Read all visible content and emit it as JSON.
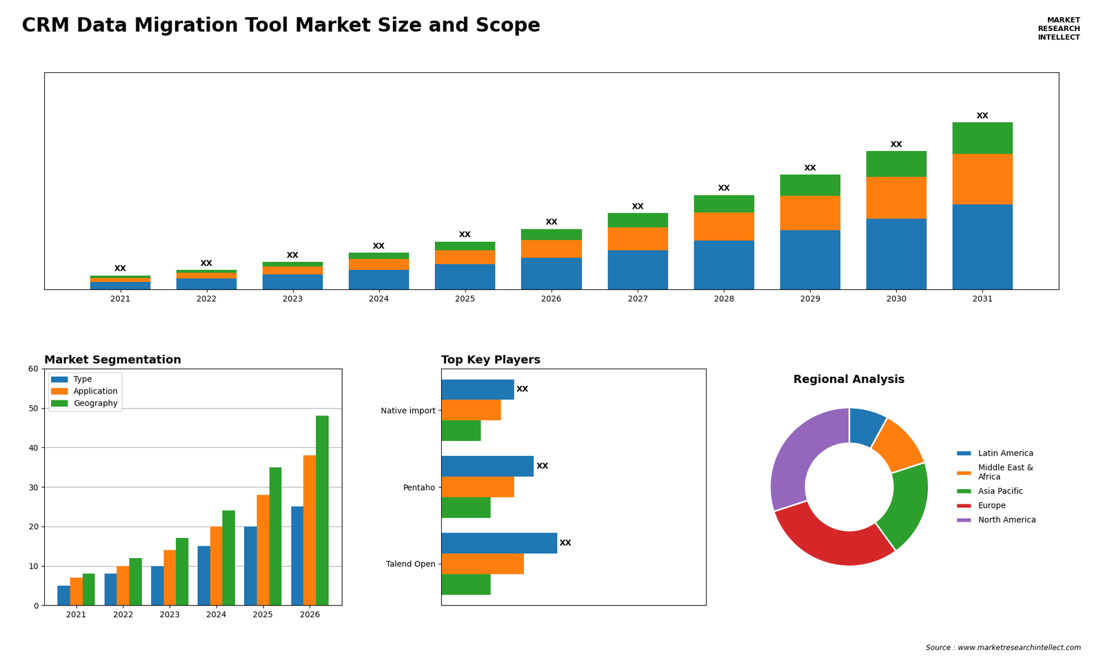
{
  "title": "CRM Data Migration Tool Market Size and Scope",
  "annotations": [
    "Source : www.marketresearchintellect.com",
    "MARKET\nRESEARCH\nINTELLECT"
  ],
  "chart_data": [
    {
      "type": "bar",
      "stacked": true,
      "categories": [
        "2021",
        "2022",
        "2023",
        "2024",
        "2025",
        "2026",
        "2027",
        "2028",
        "2029",
        "2030",
        "2031"
      ],
      "series": [
        {
          "values": [
            1.0,
            1.4,
            1.9,
            2.5,
            3.2,
            4.0,
            5.0,
            6.2,
            7.5,
            9.0,
            10.8
          ]
        },
        {
          "values": [
            0.5,
            0.7,
            1.0,
            1.4,
            1.8,
            2.3,
            2.9,
            3.6,
            4.4,
            5.3,
            6.4
          ]
        },
        {
          "values": [
            0.3,
            0.4,
            0.6,
            0.8,
            1.1,
            1.4,
            1.8,
            2.2,
            2.7,
            3.3,
            4.0
          ],
          "data_labels": true,
          "value_labels": [
            "XX",
            "XX",
            "XX",
            "XX",
            "XX",
            "XX",
            "XX",
            "XX",
            "XX",
            "XX",
            "XX"
          ]
        }
      ],
      "ylim": [
        0,
        27.56
      ],
      "tick_labels": "x"
    },
    {
      "type": "bar",
      "title": "Market Segmentation",
      "categories": [
        "2021",
        "2022",
        "2023",
        "2024",
        "2025",
        "2026"
      ],
      "series": [
        {
          "name": "Type",
          "values": [
            5,
            8,
            10,
            15,
            20,
            25
          ]
        },
        {
          "name": "Application",
          "values": [
            7,
            10,
            14,
            20,
            28,
            38
          ]
        },
        {
          "name": "Geography",
          "values": [
            8,
            12,
            17,
            24,
            35,
            48
          ]
        }
      ],
      "ylim": [
        0,
        60
      ],
      "yticks": [
        0,
        10,
        20,
        30,
        40,
        50,
        60
      ],
      "grid": true,
      "legend": "upper left"
    },
    {
      "type": "bar",
      "orientation": "horizontal",
      "title": "Top Key Players",
      "categories": [
        "Talend Open",
        "Pentaho",
        "Native import"
      ],
      "series": [
        {
          "values": [
            35,
            28,
            22
          ],
          "data_labels": true,
          "value_labels": [
            "XX",
            "XX",
            "XX"
          ]
        },
        {
          "values": [
            25,
            22,
            18
          ]
        },
        {
          "values": [
            15,
            15,
            12
          ]
        }
      ],
      "xlim": [
        0,
        80
      ],
      "tick_labels": "y"
    },
    {
      "type": "pie",
      "title": "Regional Analysis",
      "categories": [
        "Latin America",
        "Middle East &\nAfrica",
        "Asia Pacific",
        "Europe",
        "North America"
      ],
      "values": [
        8,
        12,
        20,
        30,
        30
      ],
      "legend": "center left"
    }
  ]
}
